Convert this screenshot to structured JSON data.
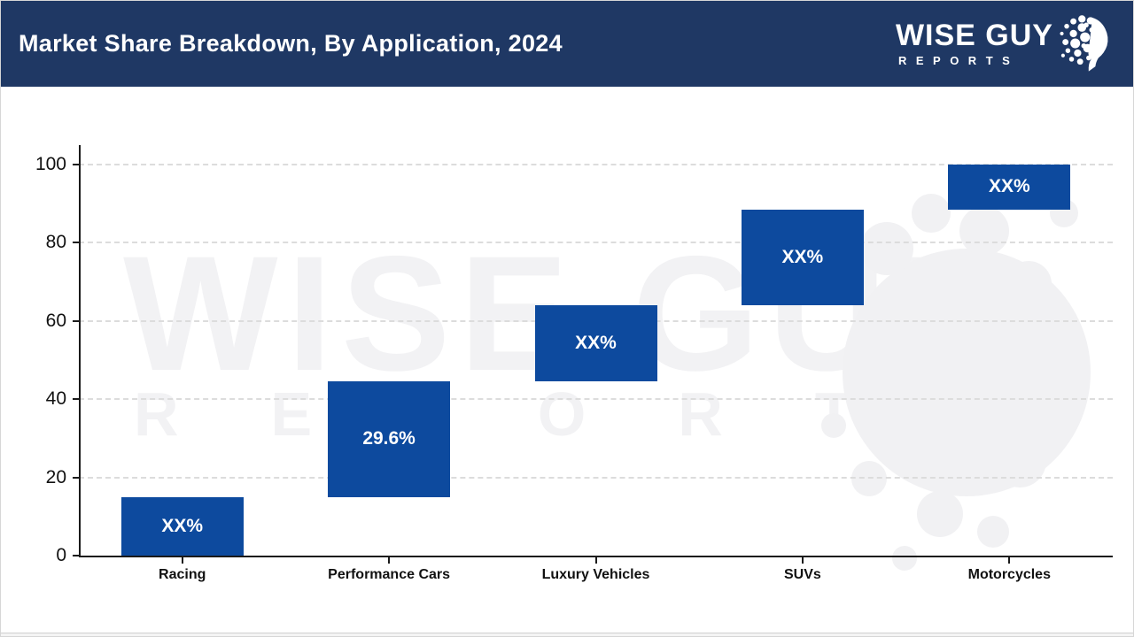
{
  "page": {
    "background": "#ffffff",
    "border_color": "#d6d6d6"
  },
  "header": {
    "title": "Market Share Breakdown, By Application, 2024",
    "background": "#1f3864",
    "logo": {
      "primary": "WISE GUY",
      "secondary": "REPORTS"
    }
  },
  "watermark": {
    "primary": "WISE GUY",
    "secondary": "REPORTS"
  },
  "chart_data": {
    "type": "bar",
    "subtype": "waterfall",
    "title": "Market Share Breakdown, By Application, 2024",
    "xlabel": "",
    "ylabel": "",
    "ylim": [
      0,
      105
    ],
    "yticks": [
      0,
      20,
      40,
      60,
      80,
      100
    ],
    "grid": "horizontal-dashed",
    "legend": "none",
    "bar_color": "#0d4a9e",
    "label_color": "#ffffff",
    "axis_color": "#1a1a1a",
    "categories": [
      "Racing",
      "Performance Cars",
      "Luxury Vehicles",
      "SUVs",
      "Motorcycles"
    ],
    "bars": [
      {
        "category": "Racing",
        "start": 0,
        "end": 15,
        "value": 15,
        "label": "XX%"
      },
      {
        "category": "Performance Cars",
        "start": 15,
        "end": 44.6,
        "value": 29.6,
        "label": "29.6%"
      },
      {
        "category": "Luxury Vehicles",
        "start": 44.6,
        "end": 64,
        "value": 19.4,
        "label": "XX%"
      },
      {
        "category": "SUVs",
        "start": 64,
        "end": 88.5,
        "value": 24.5,
        "label": "XX%"
      },
      {
        "category": "Motorcycles",
        "start": 88.5,
        "end": 100,
        "value": 11.5,
        "label": "XX%"
      }
    ]
  }
}
